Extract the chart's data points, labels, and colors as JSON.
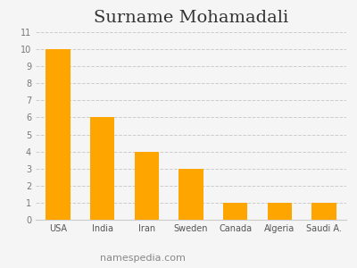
{
  "title": "Surname Mohamadali",
  "categories": [
    "USA",
    "India",
    "Iran",
    "Sweden",
    "Canada",
    "Algeria",
    "Saudi A."
  ],
  "values": [
    10,
    6,
    4,
    3,
    1,
    1,
    1
  ],
  "bar_color": "#FFA500",
  "ylim": [
    0,
    11
  ],
  "yticks": [
    0,
    1,
    2,
    3,
    4,
    5,
    6,
    7,
    8,
    9,
    10,
    11
  ],
  "grid_color": "#cccccc",
  "background_color": "#f5f5f5",
  "footer_text": "namespedia.com",
  "title_fontsize": 14,
  "tick_fontsize": 7,
  "footer_fontsize": 8
}
